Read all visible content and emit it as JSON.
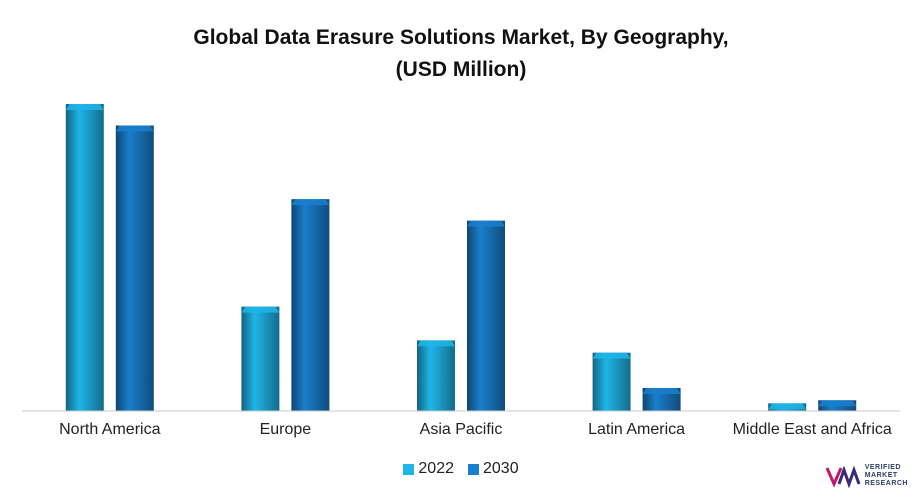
{
  "chart_data": {
    "type": "bar",
    "title": "Global Data Erasure Solutions Market, By Geography,",
    "subtitle": "(USD Million)",
    "categories": [
      "North America",
      "Europe",
      "Asia Pacific",
      "Latin America",
      "Middle East and Africa"
    ],
    "series": [
      {
        "name": "2022",
        "values": [
          100,
          34,
          23,
          19,
          2.5
        ],
        "color": "#1fb5e8"
      },
      {
        "name": "2030",
        "values": [
          93,
          69,
          62,
          7.5,
          3.5
        ],
        "color": "#1a7fcc"
      }
    ],
    "ylim": [
      0,
      100
    ],
    "grid": false,
    "legend": "bottom-center"
  },
  "logo": {
    "line1": "VERIFIED",
    "line2": "MARKET",
    "line3": "RESEARCH",
    "color": "#2c3e6b"
  }
}
